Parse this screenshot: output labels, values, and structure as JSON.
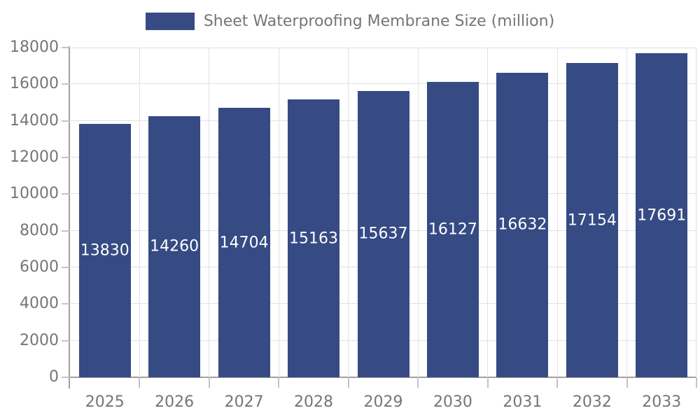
{
  "chart_data": {
    "type": "bar",
    "title": "Sheet Waterproofing Membrane Size (million)",
    "categories": [
      "2025",
      "2026",
      "2027",
      "2028",
      "2029",
      "2030",
      "2031",
      "2032",
      "2033"
    ],
    "values": [
      13830,
      14260,
      14704,
      15163,
      15637,
      16127,
      16632,
      17154,
      17691
    ],
    "series": [
      {
        "name": "Sheet Waterproofing Membrane Size (million)",
        "values": [
          13830,
          14260,
          14704,
          15163,
          15637,
          16127,
          16632,
          17154,
          17691
        ]
      }
    ],
    "xlabel": "",
    "ylabel": "",
    "ylim": [
      0,
      18000
    ],
    "ytick_step": 2000,
    "yticks": [
      0,
      2000,
      4000,
      6000,
      8000,
      10000,
      12000,
      14000,
      16000,
      18000
    ],
    "grid": true,
    "legend_position": "top",
    "value_labels": "inside-center",
    "colors": {
      "bar": "#364A84",
      "bar_label": "#FFFFFF",
      "axis_text": "#757575",
      "grid_line": "#E0E0E0",
      "axis_line": "#A0A0A0",
      "tick": "#C4C4C4",
      "background": "#FFFFFF"
    }
  },
  "legend": {
    "label": "Sheet Waterproofing Membrane Size (million)",
    "swatch_color": "#364A84"
  }
}
